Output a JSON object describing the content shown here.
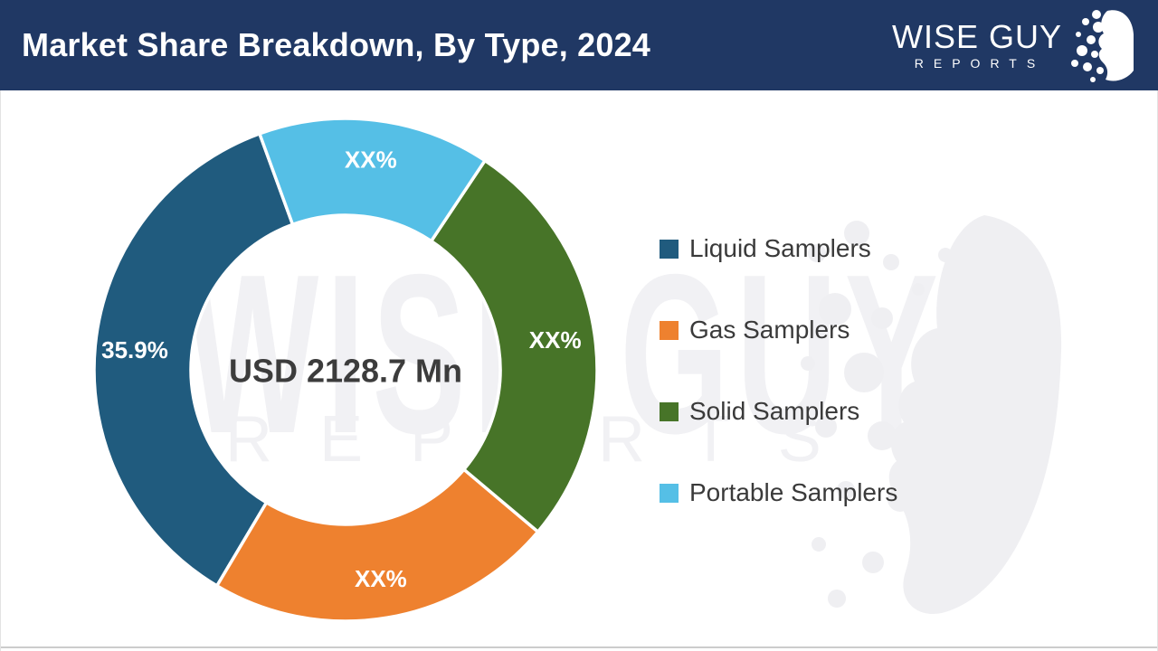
{
  "header": {
    "logo": {
      "line1": "WISE GUY",
      "line2": "REPORTS"
    }
  },
  "chart_data": {
    "type": "pie",
    "subtype": "donut",
    "title": "Market Share Breakdown, By Type, 2024",
    "center_label": "USD 2128.7 Mn",
    "start_angle_deg": -20,
    "direction": "counterclockwise",
    "inner_radius_ratio": 0.615,
    "legend_position": "right",
    "series": [
      {
        "name": "Liquid Samplers",
        "value": 35.9,
        "label": "35.9%",
        "color": "#205B7E"
      },
      {
        "name": "Gas Samplers",
        "value": 22.4,
        "label": "XX%",
        "color": "#EE812F"
      },
      {
        "name": "Solid Samplers",
        "value": 26.8,
        "label": "XX%",
        "color": "#477428"
      },
      {
        "name": "Portable Samplers",
        "value": 14.9,
        "label": "XX%",
        "color": "#55BFE6"
      }
    ]
  },
  "colors": {
    "header_background": "#203864",
    "title_text": "#ffffff",
    "center_text": "#3c3c3c",
    "legend_text": "#3a3a3a",
    "watermark": "#f1f1f4"
  }
}
